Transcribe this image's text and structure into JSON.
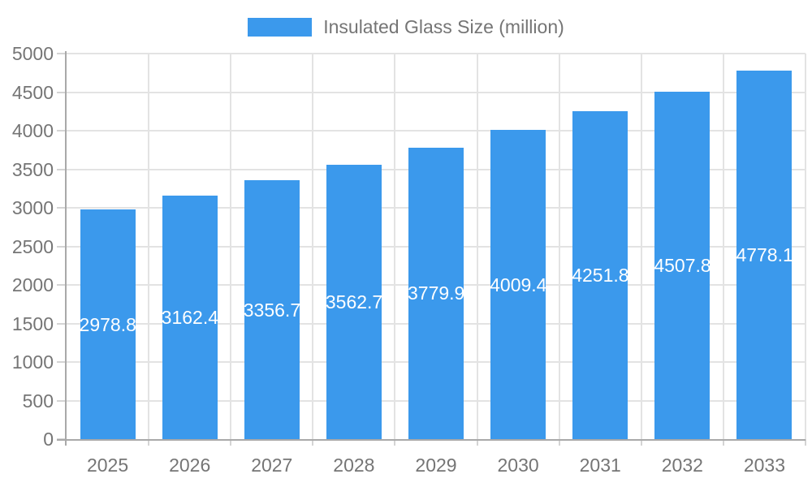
{
  "chart_data": {
    "type": "bar",
    "legend": "Insulated Glass Size (million)",
    "legend_position": "top",
    "categories": [
      "2025",
      "2026",
      "2027",
      "2028",
      "2029",
      "2030",
      "2031",
      "2032",
      "2033"
    ],
    "values": [
      2978.8,
      3162.4,
      3356.7,
      3562.7,
      3779.9,
      4009.4,
      4251.8,
      4507.8,
      4778.1
    ],
    "ylim": [
      0,
      5000
    ],
    "ytick_step": 500,
    "ytick_labels": [
      "0",
      "500",
      "1000",
      "1500",
      "2000",
      "2500",
      "3000",
      "3500",
      "4000",
      "4500",
      "5000"
    ],
    "grid": true,
    "colors": {
      "bar": "#3b99ec",
      "bar_label": "#ffffff",
      "axis_text": "#757575",
      "axis_line": "#a9a9a9",
      "gridline": "#e3e3e3",
      "tick": "#d4d4d4",
      "background": "#ffffff"
    }
  }
}
